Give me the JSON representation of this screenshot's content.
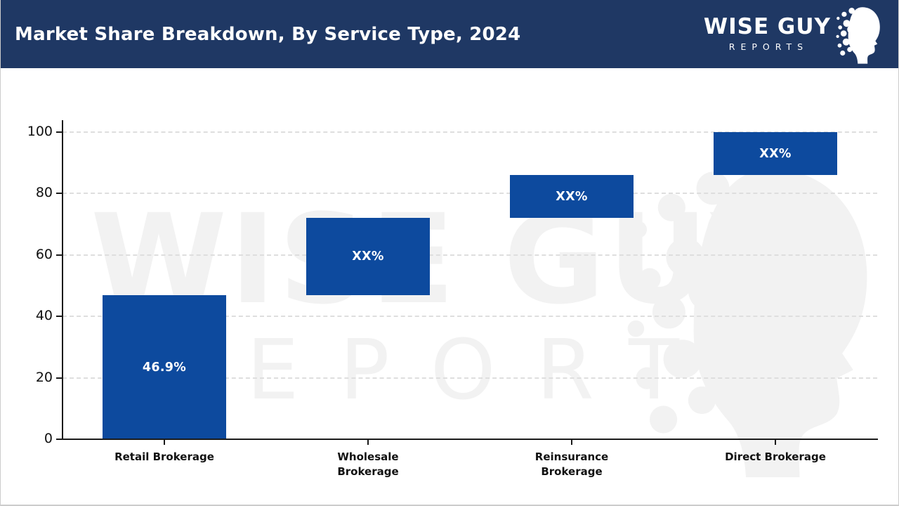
{
  "header": {
    "title": "Market Share Breakdown, By Service Type, 2024",
    "logo": {
      "wordmark": "WISE GUY",
      "subtitle": "REPORTS"
    }
  },
  "watermark": {
    "line1": "WISE GUY",
    "line2": "REPORTS"
  },
  "chart_data": {
    "type": "bar",
    "subtype": "waterfall-floating-bars",
    "title": "Market Share Breakdown, By Service Type, 2024",
    "categories": [
      "Retail Brokerage",
      "Wholesale Brokerage",
      "Reinsurance Brokerage",
      "Direct Brokerage"
    ],
    "segments": [
      {
        "category": "Retail Brokerage",
        "start": 0,
        "end": 46.9,
        "label": "46.9%"
      },
      {
        "category": "Wholesale Brokerage",
        "start": 46.9,
        "end": 72,
        "label": "XX%"
      },
      {
        "category": "Reinsurance Brokerage",
        "start": 72,
        "end": 86,
        "label": "XX%"
      },
      {
        "category": "Direct Brokerage",
        "start": 86,
        "end": 100,
        "label": "XX%"
      }
    ],
    "xlabel": "",
    "ylabel": "",
    "ylim": [
      0,
      100
    ],
    "yticks": [
      0,
      20,
      40,
      60,
      80,
      100
    ],
    "grid": "horizontal-dashed",
    "legend": "none"
  },
  "colors": {
    "header_bg": "#1f3864",
    "bar": "#0d4a9e",
    "bar_label": "#ffffff",
    "watermark": "#f2f2f2",
    "axis": "#1a1a1a",
    "grid": "#dedede"
  }
}
